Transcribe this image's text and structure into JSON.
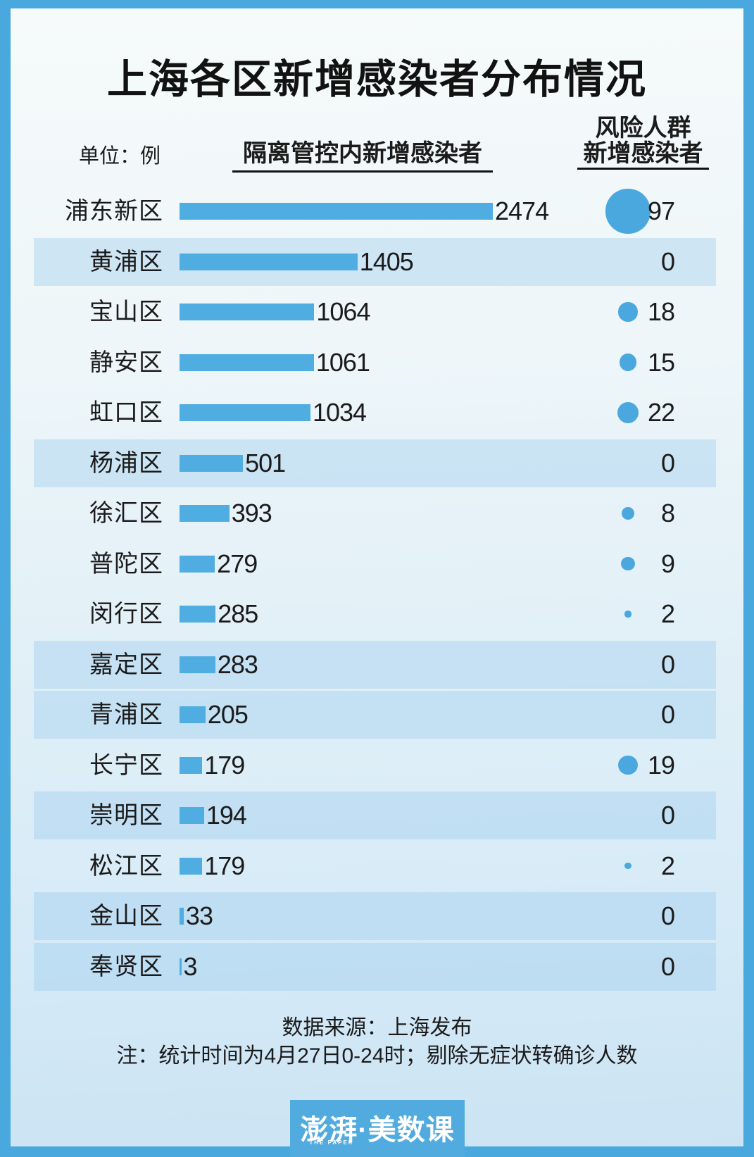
{
  "title": "上海各区新增感染者分布情况",
  "unit_label": "单位：例",
  "columns": {
    "bar_header": "隔离管控内新增感染者",
    "risk_header_line1": "风险人群",
    "risk_header_line2": "新增感染者"
  },
  "footer": {
    "source": "数据来源：上海发布",
    "note": "注：统计时间为4月27日0-24时；剔除无症状转确诊人数"
  },
  "logo": {
    "text": "澎湃·美数课",
    "subtext": "THE PAPER"
  },
  "colors": {
    "frame_blue": "#49a9de",
    "bar_blue": "#4fade1",
    "circle_blue": "#4aa8de",
    "row_highlight": "#d2e7f3",
    "background_top": "#f6fafa",
    "background_bottom": "#cbe3f3",
    "text": "#1b1b1b",
    "logo_bg": "#51abde"
  },
  "chart_data": {
    "type": "bar",
    "orientation": "horizontal",
    "unit": "例",
    "title": "上海各区新增感染者分布情况",
    "categories": [
      "浦东新区",
      "黄浦区",
      "宝山区",
      "静安区",
      "虹口区",
      "杨浦区",
      "徐汇区",
      "普陀区",
      "闵行区",
      "嘉定区",
      "青浦区",
      "长宁区",
      "崇明区",
      "松江区",
      "金山区",
      "奉贤区"
    ],
    "series": [
      {
        "name": "隔离管控内新增感染者",
        "display": "bar",
        "values": [
          2474,
          1405,
          1064,
          1061,
          1034,
          501,
          393,
          279,
          285,
          283,
          205,
          179,
          194,
          179,
          33,
          3
        ]
      },
      {
        "name": "风险人群新增感染者",
        "display": "circle-area",
        "values": [
          97,
          0,
          18,
          15,
          22,
          0,
          8,
          9,
          2,
          0,
          0,
          19,
          0,
          2,
          0,
          0
        ]
      }
    ],
    "xlim": [
      0,
      2474
    ],
    "grid": false,
    "legend": "column-headers",
    "note": "rows with risk value 0 are shown with a light-blue highlight stripe; circle area scales with risk value"
  }
}
